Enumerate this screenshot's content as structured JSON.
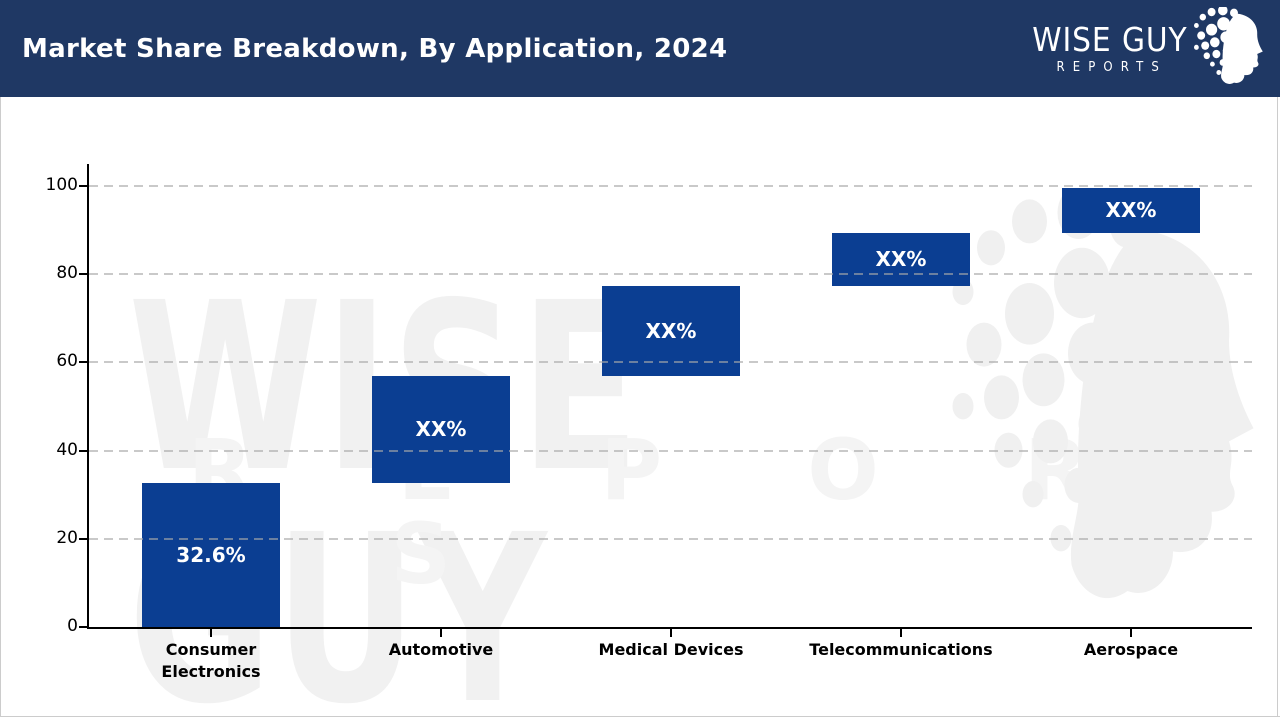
{
  "header": {
    "title": "Market Share Breakdown, By Application, 2024",
    "bg_color": "#1f3864",
    "logo": {
      "line1": "WISE GUY",
      "line2": "REPORTS"
    }
  },
  "watermark": {
    "line1": "WISE GUY",
    "line2": "R E P O R T S"
  },
  "chart_data": {
    "type": "bar",
    "variant": "waterfall",
    "title": "Market Share Breakdown, By Application, 2024",
    "categories": [
      "Consumer\nElectronics",
      "Automotive",
      "Medical Devices",
      "Telecommunications",
      "Aerospace"
    ],
    "segments": [
      {
        "category": "Consumer Electronics",
        "start": 0,
        "end": 32.6,
        "label": "32.6%"
      },
      {
        "category": "Automotive",
        "start": 32.6,
        "end": 57.0,
        "label": "XX%"
      },
      {
        "category": "Medical Devices",
        "start": 57.0,
        "end": 77.4,
        "label": "XX%"
      },
      {
        "category": "Telecommunications",
        "start": 77.4,
        "end": 89.3,
        "label": "XX%"
      },
      {
        "category": "Aerospace",
        "start": 89.3,
        "end": 99.6,
        "label": "XX%"
      }
    ],
    "yticks": [
      0,
      20,
      40,
      60,
      80,
      100
    ],
    "ylim": [
      0,
      105
    ],
    "grid": "horizontal-dashed",
    "grid_on_top": true,
    "legend": "none",
    "bar_color": "#0b3e92",
    "bar_label_color": "#ffffff",
    "axis_color": "#000000"
  }
}
